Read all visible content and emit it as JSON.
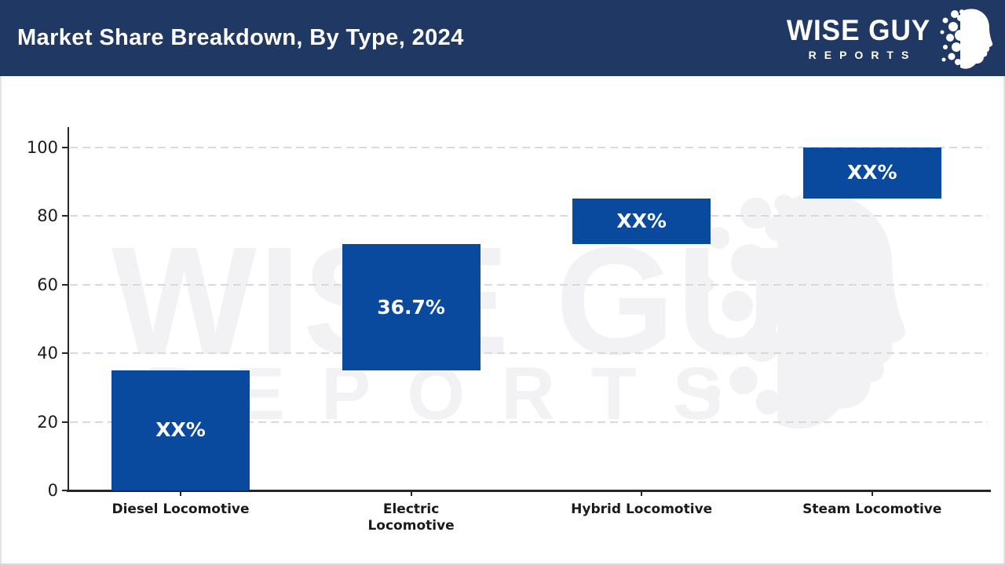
{
  "header": {
    "title": "Market Share Breakdown, By Type, 2024",
    "logo": {
      "name": "Wise Guy Reports",
      "line1": "WISE GUY",
      "line2": "REPORTS"
    }
  },
  "watermark": {
    "line1": "WISE GUY",
    "line2": "REPORTS"
  },
  "colors": {
    "header_bg": "#1f3864",
    "bar_fill": "#0a4a9e",
    "bar_label_text": "#ffffff",
    "grid_line": "#d9d9d9",
    "axis_line": "#262626",
    "tick_label_text": "#1a1a1a",
    "watermark": "#f2f2f4"
  },
  "chart_data": {
    "type": "bar",
    "variant": "floating-waterfall",
    "title": "Market Share Breakdown, By Type, 2024",
    "xlabel": "",
    "ylabel": "",
    "ylim": [
      0,
      105
    ],
    "yticks": [
      0,
      20,
      40,
      60,
      80,
      100
    ],
    "grid": "horizontal-dashed",
    "legend": "none",
    "categories": [
      "Diesel Locomotive",
      "Electric Locomotive",
      "Hybrid Locomotive",
      "Steam Locomotive"
    ],
    "xtick_display_lines": [
      [
        "Diesel Locomotive"
      ],
      [
        "Electric",
        "Locomotive"
      ],
      [
        "Hybrid Locomotive"
      ],
      [
        "Steam Locomotive"
      ]
    ],
    "segments": [
      {
        "category": "Diesel Locomotive",
        "start": 0,
        "end": 35,
        "value_label": "XX%"
      },
      {
        "category": "Electric Locomotive",
        "start": 35,
        "end": 71.7,
        "value_label": "36.7%"
      },
      {
        "category": "Hybrid Locomotive",
        "start": 71.7,
        "end": 85,
        "value_label": "XX%"
      },
      {
        "category": "Steam Locomotive",
        "start": 85,
        "end": 100,
        "value_label": "XX%"
      }
    ]
  }
}
